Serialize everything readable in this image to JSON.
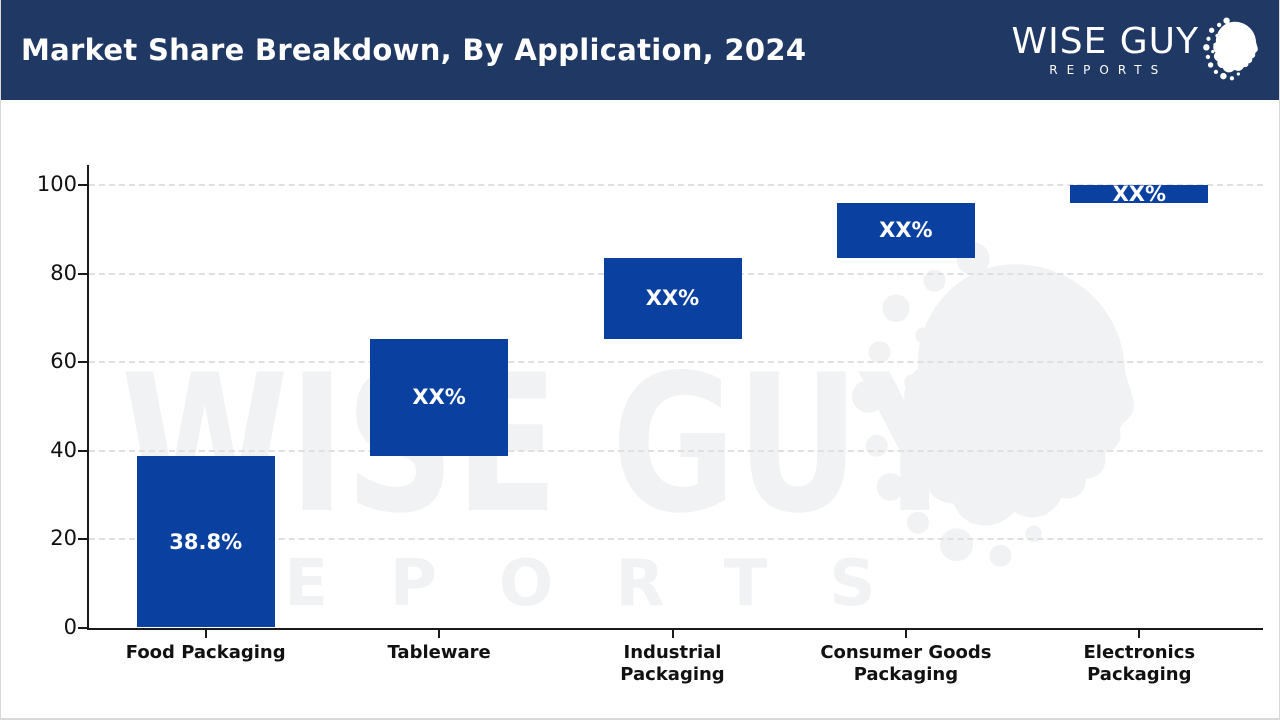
{
  "header": {
    "title": "Market Share Breakdown, By Application, 2024",
    "logo": {
      "line1": "WISE GUY",
      "line2": "REPORTS"
    }
  },
  "watermark": {
    "line1": "WISE GUY",
    "line2": "REPORTS"
  },
  "colors": {
    "header_bg": "#203864",
    "bar": "#0a41a1",
    "bar_label": "#ffffff",
    "grid": "#e0e0e0",
    "axis": "#1a1a1a",
    "watermark": "#f1f2f4"
  },
  "chart_data": {
    "type": "waterfall",
    "title": "Market Share Breakdown, By Application, 2024",
    "categories": [
      "Food Packaging",
      "Tableware",
      "Industrial Packaging",
      "Consumer Goods Packaging",
      "Electronics Packaging"
    ],
    "category_label_lines": [
      [
        "Food Packaging"
      ],
      [
        "Tableware"
      ],
      [
        "Industrial",
        "Packaging"
      ],
      [
        "Consumer Goods",
        "Packaging"
      ],
      [
        "Electronics",
        "Packaging"
      ]
    ],
    "segments": [
      {
        "category": "Food Packaging",
        "start": 0,
        "end": 38.8,
        "value": 38.8,
        "label": "38.8%"
      },
      {
        "category": "Tableware",
        "start": 38.8,
        "end": 65.3,
        "value": 26.5,
        "label": "XX%"
      },
      {
        "category": "Industrial Packaging",
        "start": 65.3,
        "end": 83.6,
        "value": 18.3,
        "label": "XX%"
      },
      {
        "category": "Consumer Goods Packaging",
        "start": 83.6,
        "end": 95.9,
        "value": 12.3,
        "label": "XX%"
      },
      {
        "category": "Electronics Packaging",
        "start": 95.9,
        "end": 100,
        "value": 4.1,
        "label": "XX%"
      }
    ],
    "ylim": [
      0,
      100
    ],
    "yticks": [
      0,
      20,
      40,
      60,
      80,
      100
    ],
    "grid": {
      "horizontal": true,
      "style": "dashed"
    },
    "legend": "none",
    "xlabel": "",
    "ylabel": ""
  }
}
